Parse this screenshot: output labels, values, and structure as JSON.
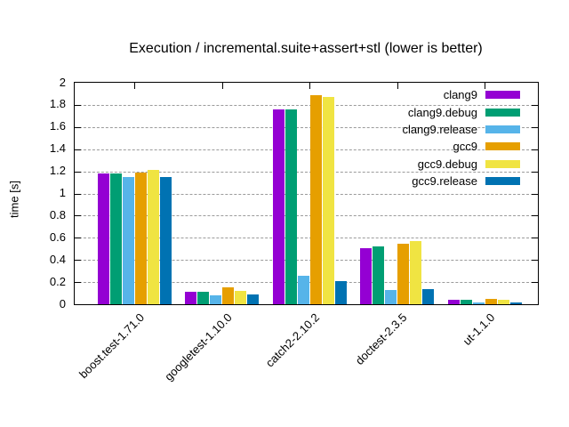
{
  "chart_data": {
    "type": "bar",
    "title": "Execution / incremental.suite+assert+stl (lower is better)",
    "ylabel": "time [s]",
    "ylim": [
      0,
      2
    ],
    "ytick_step": 0.2,
    "grid": "horizontal-dashed",
    "legend_position": "top-right-inside",
    "categories": [
      "boost.test-1.71.0",
      "googletest-1.10.0",
      "catch2-2.10.2",
      "doctest-2.3.5",
      "ut-1.1.0"
    ],
    "series": [
      {
        "name": "clang9",
        "color": "#9400d3",
        "values": [
          1.18,
          0.11,
          1.76,
          0.51,
          0.04
        ]
      },
      {
        "name": "clang9.debug",
        "color": "#009e73",
        "values": [
          1.18,
          0.11,
          1.76,
          0.52,
          0.04
        ]
      },
      {
        "name": "clang9.release",
        "color": "#56b4e9",
        "values": [
          1.15,
          0.08,
          0.26,
          0.13,
          0.02
        ]
      },
      {
        "name": "gcc9",
        "color": "#e69f00",
        "values": [
          1.19,
          0.15,
          1.89,
          0.55,
          0.05
        ]
      },
      {
        "name": "gcc9.debug",
        "color": "#f0e442",
        "values": [
          1.21,
          0.12,
          1.87,
          0.57,
          0.04
        ]
      },
      {
        "name": "gcc9.release",
        "color": "#0072b2",
        "values": [
          1.15,
          0.09,
          0.21,
          0.14,
          0.02
        ]
      }
    ]
  }
}
